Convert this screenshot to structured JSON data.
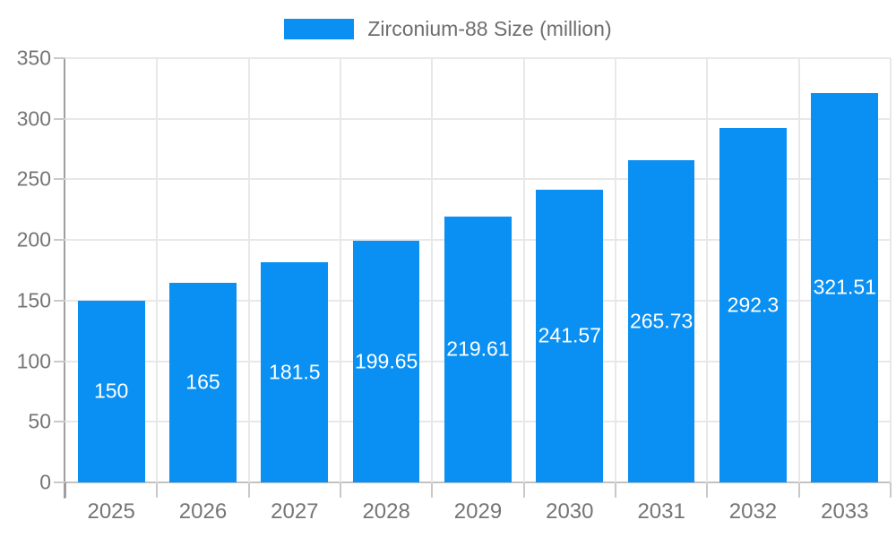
{
  "chart_data": {
    "type": "bar",
    "title": "",
    "legend": "Zirconium-88 Size (million)",
    "legend_position": "top",
    "categories": [
      "2025",
      "2026",
      "2027",
      "2028",
      "2029",
      "2030",
      "2031",
      "2032",
      "2033"
    ],
    "values": [
      150,
      165,
      181.5,
      199.65,
      219.61,
      241.57,
      265.73,
      292.3,
      321.51
    ],
    "value_labels": [
      "150",
      "165",
      "181.5",
      "199.65",
      "219.61",
      "241.57",
      "265.73",
      "292.3",
      "321.51"
    ],
    "xlabel": "",
    "ylabel": "",
    "ylim": [
      0,
      350
    ],
    "y_ticks": [
      0,
      50,
      100,
      150,
      200,
      250,
      300,
      350
    ],
    "grid": true,
    "bar_color": "#0a90f2"
  },
  "colors": {
    "bar": "#0a90f2",
    "bar_label_text": "#ffffff",
    "gridline": "#e8e8e8",
    "baseline": "#c2c2c2",
    "axis_line": "#9e9e9e",
    "tick_text": "#757575",
    "legend_text": "#6e6e6e",
    "background": "#ffffff"
  }
}
